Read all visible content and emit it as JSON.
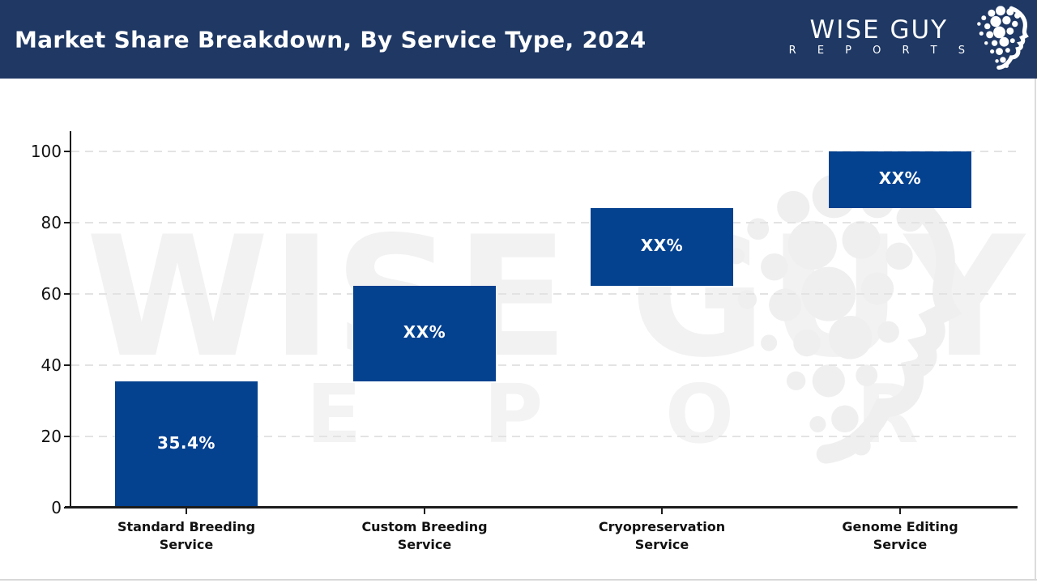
{
  "header": {
    "background_color": "#1f3864",
    "title": "Market Share Breakdown, By Service Type, 2024",
    "logo": {
      "name_line": "WISE GUY",
      "sub_line": "R E P O R T S"
    }
  },
  "watermark": {
    "name_line": "WISE GUY",
    "sub_line": "R E P O R T S"
  },
  "chart_data": {
    "type": "bar",
    "subtype": "waterfall (floating stacked segments)",
    "title": "Market Share Breakdown, By Service Type, 2024",
    "categories": [
      [
        "Standard Breeding",
        "Service"
      ],
      [
        "Custom Breeding",
        "Service"
      ],
      [
        "Cryopreservation",
        "Service"
      ],
      [
        "Genome Editing",
        "Service"
      ]
    ],
    "segments": [
      {
        "start": 0,
        "end": 35.4,
        "label": "35.4%"
      },
      {
        "start": 35.4,
        "end": 62.3,
        "label": "XX%"
      },
      {
        "start": 62.3,
        "end": 84.1,
        "label": "XX%"
      },
      {
        "start": 84.1,
        "end": 100,
        "label": "XX%"
      }
    ],
    "ylim": [
      0,
      100
    ],
    "yticks": [
      0,
      20,
      40,
      60,
      80,
      100
    ],
    "xlabel": "",
    "ylabel": "",
    "legend": "none",
    "grid": "horizontal dashed",
    "bar_color": "#04418f",
    "bar_label_color": "#ffffff",
    "axis_color": "#1c1c1c",
    "gridline_color": "#e3e3e3"
  }
}
